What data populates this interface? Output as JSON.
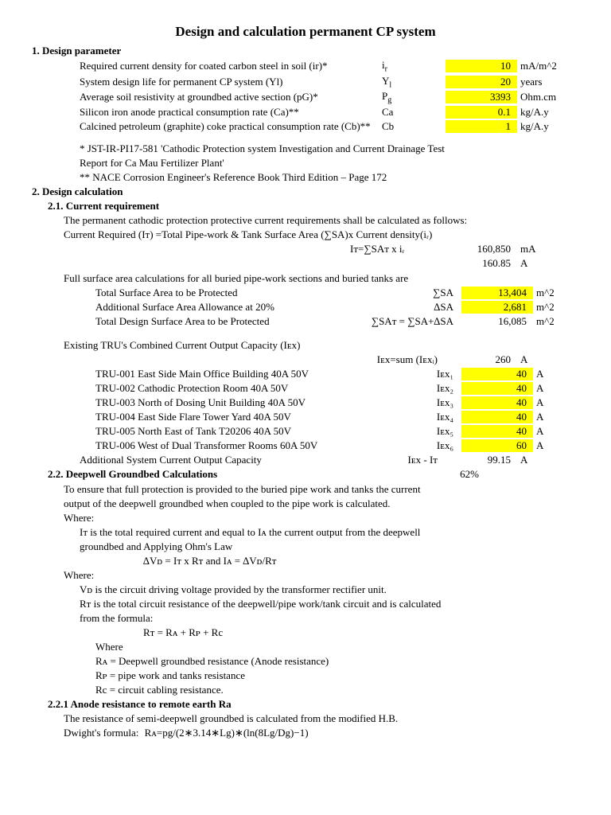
{
  "title": "Design and calculation permanent CP system",
  "sec1": "1. Design parameter",
  "params": [
    {
      "label": "Required current density for coated carbon steel in soil (ir)*",
      "sym": "i",
      "sub": "r",
      "val": "10",
      "unit": "mA/m^2"
    },
    {
      "label": "System design life for permanent CP system (Yl)",
      "sym": "Y",
      "sub": "l",
      "val": "20",
      "unit": "years"
    },
    {
      "label": "Average soil resistivity at groundbed active section (pG)*",
      "sym": "P",
      "sub": "g",
      "val": "3393",
      "unit": "Ohm.cm"
    },
    {
      "label": "Silicon iron anode practical consumption rate (Ca)**",
      "sym": "Ca",
      "sub": "",
      "val": "0.1",
      "unit": "kg/A.y"
    },
    {
      "label": "Calcined petroleum (graphite) coke practical consumption rate (Cb)**",
      "sym": "Cb",
      "sub": "",
      "val": "1",
      "unit": "kg/A.y"
    }
  ],
  "note1": "* JST-IR-PI17-581 'Cathodic Protection system Investigation and Current Drainage Test",
  "note1b": "Report for Ca Mau Fertilizer Plant'",
  "note2": "** NACE Corrosion Engineer's Reference Book Third Edition – Page 172",
  "sec2": "2. Design calculation",
  "sec21": "2.1. Current requirement",
  "s21_intro": "The permanent cathodic protection protective current requirements shall be calculated as follows:",
  "s21_cur": "Current Required (Iᴛ) =Total Pipe-work & Tank Surface Area (∑SA)x Current density(iᵣ)",
  "s21_form": "Iᴛ=∑SAᴛ x iᵣ",
  "s21_v1": "160,850",
  "s21_u1": "mA",
  "s21_v2": "160.85",
  "s21_u2": "A",
  "s21_full": "Full surface area calculations for all buried pipe-work sections and buried tanks are",
  "sa": [
    {
      "label": "Total Surface Area to be Protected",
      "sym": "∑SA",
      "val": "13,404",
      "unit": "m^2",
      "hl": true
    },
    {
      "label": "Additional Surface Area Allowance at 20%",
      "sym": "∆SA",
      "val": "2,681",
      "unit": "m^2",
      "hl": true
    },
    {
      "label": "Total Design Surface Area to be Protected",
      "sym": "∑SAᴛ = ∑SA+∆SA",
      "val": "16,085",
      "unit": "m^2",
      "hl": false
    }
  ],
  "tru_head": "Existing TRU's Combined Current Output Capacity (Iᴇx)",
  "tru_sym": "Iᴇx=sum (Iᴇxᵢ)",
  "tru_val": "260",
  "tru_unit": "A",
  "trus": [
    {
      "label": "TRU-001 East Side Main Office Building 40A 50V",
      "sym": "Iᴇx₁",
      "val": "40",
      "unit": "A"
    },
    {
      "label": "TRU-002 Cathodic Protection Room 40A 50V",
      "sym": "Iᴇx₂",
      "val": "40",
      "unit": "A"
    },
    {
      "label": "TRU-003 North of Dosing Unit Building 40A 50V",
      "sym": "Iᴇx₃",
      "val": "40",
      "unit": "A"
    },
    {
      "label": "TRU-004 East Side Flare Tower Yard 40A 50V",
      "sym": "Iᴇx₄",
      "val": "40",
      "unit": "A"
    },
    {
      "label": "TRU-005 North East of Tank T20206 40A 50V",
      "sym": "Iᴇx₅",
      "val": "40",
      "unit": "A"
    },
    {
      "label": "TRU-006 West of Dual Transformer Rooms 60A 50V",
      "sym": "Iᴇx₆",
      "val": "60",
      "unit": "A"
    }
  ],
  "addcap_label": "Additional System Current Output Capacity",
  "addcap_sym": "Iᴇx - Iᴛ",
  "addcap_val": "99.15",
  "addcap_unit": "A",
  "pct": "62%",
  "sec22": "2.2. Deepwell Groundbed Calculations",
  "s22_a": "To ensure that full protection is provided to the buried pipe work and tanks the current",
  "s22_b": "output of the deepwell groundbed when coupled to the pipe work is calculated.",
  "where": "Where:",
  "s22_c": "Iᴛ is the total required current and equal to Iᴀ the current output from the deepwell",
  "s22_d": "groundbed and Applying Ohm's Law",
  "s22_form": "∆Vᴅ = Iᴛ x Rᴛ and Iᴀ = ∆Vᴅ/Rᴛ",
  "s22_e": "Vᴅ is the circuit driving voltage provided by the transformer rectifier unit.",
  "s22_f": "Rᴛ is the total circuit resistance of the deepwell/pipe work/tank circuit and is calculated",
  "s22_g": "from the formula:",
  "s22_form2": "Rᴛ = Rᴀ + Rᴘ + Rc",
  "where2": "Where",
  "ra": "Rᴀ = Deepwell groundbed resistance (Anode resistance)",
  "rp": "Rᴘ = pipe work and tanks resistance",
  "rc": "Rc = circuit cabling resistance.",
  "sec221": "2.2.1 Anode resistance to remote earth Ra",
  "s221_a": "The resistance of semi-deepwell groundbed is calculated from the modified H.B.",
  "s221_b": "Dwight's formula:",
  "s221_form": "Rᴀ=pg/(2∗3.14∗Lg)∗(ln(8Lg/Dg)−1)"
}
